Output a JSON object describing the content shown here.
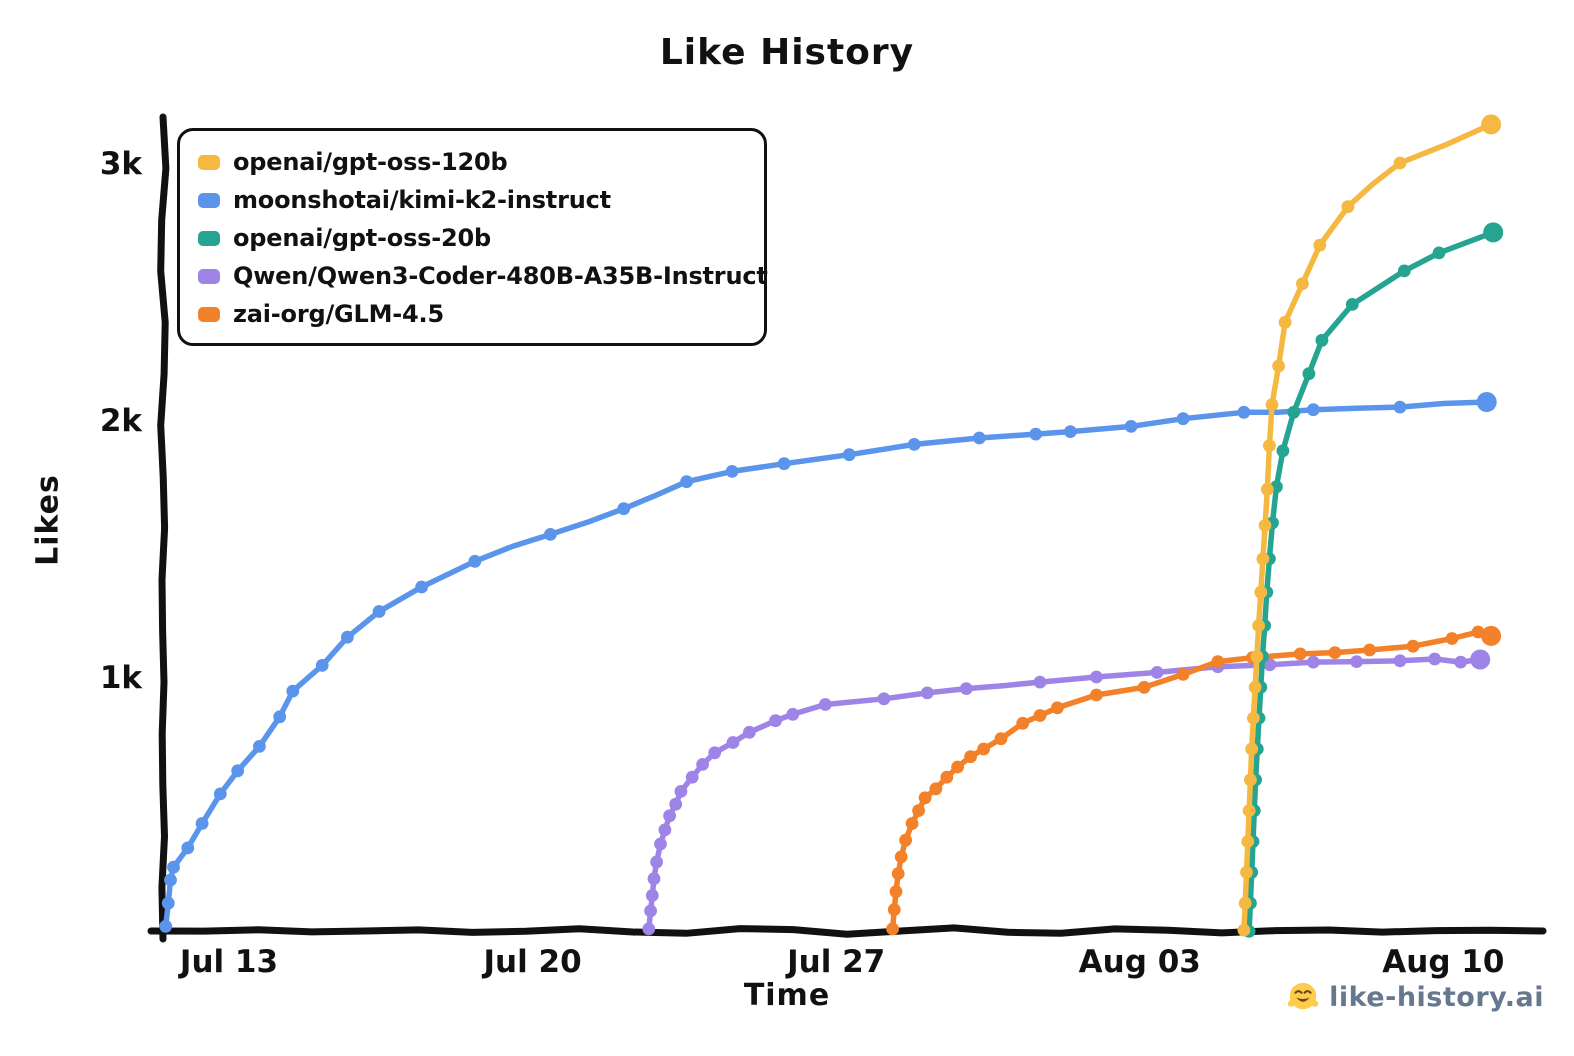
{
  "chart": {
    "title": "Like History",
    "xlabel": "Time",
    "ylabel": "Likes"
  },
  "watermark": {
    "text": "like-history.ai",
    "icon": "hugging-face-emoji",
    "color": "#66788E"
  },
  "chart_data": {
    "type": "line",
    "title": "Like History",
    "xlabel": "Time",
    "ylabel": "Likes",
    "grid": false,
    "legend_position": "upper-left",
    "x_unit": "days (0 = Jul 11)",
    "xlim": [
      -0.3,
      31.8
    ],
    "ylim": [
      0,
      3250
    ],
    "x_ticks": [
      {
        "day": 2,
        "label": "Jul 13"
      },
      {
        "day": 9,
        "label": "Jul 20"
      },
      {
        "day": 16,
        "label": "Jul 27"
      },
      {
        "day": 23,
        "label": "Aug 03"
      },
      {
        "day": 30,
        "label": "Aug 10"
      }
    ],
    "y_ticks": [
      {
        "value": 1000,
        "label": "1k"
      },
      {
        "value": 2000,
        "label": "2k"
      },
      {
        "value": 3000,
        "label": "3k"
      }
    ],
    "series": [
      {
        "name": "openai/gpt-oss-120b",
        "color": "#F5B840",
        "points": [
          [
            25.4,
            15
          ],
          [
            25.43,
            120
          ],
          [
            25.46,
            240
          ],
          [
            25.49,
            360
          ],
          [
            25.52,
            480
          ],
          [
            25.55,
            600
          ],
          [
            25.58,
            720
          ],
          [
            25.62,
            840
          ],
          [
            25.66,
            960
          ],
          [
            25.7,
            1080
          ],
          [
            25.74,
            1200
          ],
          [
            25.79,
            1330
          ],
          [
            25.84,
            1460
          ],
          [
            25.89,
            1590
          ],
          [
            25.94,
            1730
          ],
          [
            25.99,
            1900
          ],
          [
            26.05,
            2060
          ],
          [
            26.2,
            2210
          ],
          [
            26.35,
            2380
          ],
          [
            26.75,
            2530
          ],
          [
            27.15,
            2680
          ],
          [
            27.8,
            2830
          ],
          [
            29.0,
            3000
          ],
          [
            31.1,
            3150
          ]
        ]
      },
      {
        "name": "moonshotai/kimi-k2-instruct",
        "color": "#5B95EB",
        "points": [
          [
            0.54,
            30
          ],
          [
            0.6,
            120
          ],
          [
            0.65,
            210
          ],
          [
            0.72,
            260
          ],
          [
            1.05,
            335
          ],
          [
            1.38,
            430
          ],
          [
            1.8,
            545
          ],
          [
            2.2,
            635
          ],
          [
            2.7,
            730
          ],
          [
            3.17,
            845
          ],
          [
            3.47,
            945
          ],
          [
            4.15,
            1045
          ],
          [
            4.73,
            1155
          ],
          [
            5.46,
            1255
          ],
          [
            6.44,
            1350
          ],
          [
            7.67,
            1450
          ],
          [
            9.41,
            1555
          ],
          [
            11.1,
            1655
          ],
          [
            12.55,
            1760
          ],
          [
            13.6,
            1800
          ],
          [
            14.8,
            1830
          ],
          [
            16.3,
            1865
          ],
          [
            17.8,
            1905
          ],
          [
            19.3,
            1930
          ],
          [
            20.6,
            1945
          ],
          [
            21.4,
            1955
          ],
          [
            22.8,
            1975
          ],
          [
            24.0,
            2005
          ],
          [
            25.4,
            2030
          ],
          [
            27.0,
            2040
          ],
          [
            29.0,
            2050
          ],
          [
            31.0,
            2070
          ]
        ]
      },
      {
        "name": "openai/gpt-oss-20b",
        "color": "#26A492",
        "points": [
          [
            25.52,
            10
          ],
          [
            25.55,
            120
          ],
          [
            25.58,
            240
          ],
          [
            25.61,
            360
          ],
          [
            25.64,
            480
          ],
          [
            25.67,
            600
          ],
          [
            25.71,
            720
          ],
          [
            25.75,
            840
          ],
          [
            25.79,
            960
          ],
          [
            25.83,
            1080
          ],
          [
            25.88,
            1200
          ],
          [
            25.93,
            1330
          ],
          [
            25.99,
            1460
          ],
          [
            26.06,
            1600
          ],
          [
            26.15,
            1740
          ],
          [
            26.3,
            1880
          ],
          [
            26.55,
            2030
          ],
          [
            26.9,
            2180
          ],
          [
            27.2,
            2310
          ],
          [
            27.9,
            2450
          ],
          [
            29.1,
            2580
          ],
          [
            29.9,
            2650
          ],
          [
            31.15,
            2730
          ]
        ]
      },
      {
        "name": "Qwen/Qwen3-Coder-480B-A35B-Instruct",
        "color": "#9F84E7",
        "points": [
          [
            11.68,
            20
          ],
          [
            11.72,
            90
          ],
          [
            11.76,
            150
          ],
          [
            11.8,
            215
          ],
          [
            11.86,
            280
          ],
          [
            11.95,
            350
          ],
          [
            12.05,
            405
          ],
          [
            12.16,
            460
          ],
          [
            12.3,
            505
          ],
          [
            12.42,
            555
          ],
          [
            12.68,
            610
          ],
          [
            12.92,
            660
          ],
          [
            13.2,
            705
          ],
          [
            13.62,
            745
          ],
          [
            14.0,
            785
          ],
          [
            14.6,
            830
          ],
          [
            15.0,
            855
          ],
          [
            15.75,
            893
          ],
          [
            17.1,
            915
          ],
          [
            18.1,
            938
          ],
          [
            19.0,
            955
          ],
          [
            20.7,
            980
          ],
          [
            22.0,
            1000
          ],
          [
            23.4,
            1018
          ],
          [
            24.8,
            1040
          ],
          [
            26.0,
            1048
          ],
          [
            27.0,
            1058
          ],
          [
            28.0,
            1060
          ],
          [
            29.0,
            1063
          ],
          [
            29.8,
            1070
          ],
          [
            30.4,
            1058
          ],
          [
            30.85,
            1068
          ]
        ]
      },
      {
        "name": "zai-org/GLM-4.5",
        "color": "#F28129",
        "points": [
          [
            17.3,
            20
          ],
          [
            17.34,
            95
          ],
          [
            17.38,
            165
          ],
          [
            17.43,
            235
          ],
          [
            17.5,
            300
          ],
          [
            17.6,
            365
          ],
          [
            17.75,
            430
          ],
          [
            17.9,
            480
          ],
          [
            18.05,
            530
          ],
          [
            18.3,
            565
          ],
          [
            18.55,
            610
          ],
          [
            18.8,
            650
          ],
          [
            19.1,
            690
          ],
          [
            19.4,
            720
          ],
          [
            19.8,
            760
          ],
          [
            20.3,
            820
          ],
          [
            20.7,
            850
          ],
          [
            21.1,
            880
          ],
          [
            22.0,
            930
          ],
          [
            23.1,
            960
          ],
          [
            24.0,
            1010
          ],
          [
            24.8,
            1060
          ],
          [
            25.6,
            1075
          ],
          [
            26.7,
            1090
          ],
          [
            27.5,
            1095
          ],
          [
            28.3,
            1105
          ],
          [
            29.3,
            1120
          ],
          [
            30.2,
            1150
          ],
          [
            30.8,
            1175
          ],
          [
            31.1,
            1160
          ]
        ]
      }
    ]
  }
}
